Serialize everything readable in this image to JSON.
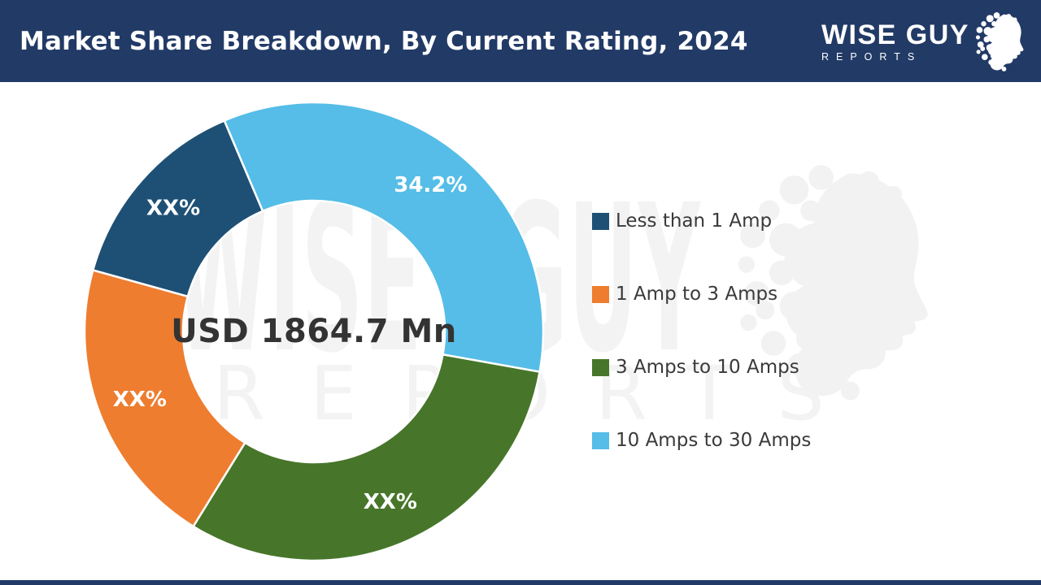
{
  "header": {
    "title": "Market Share Breakdown, By Current Rating, 2024",
    "background_color": "#223A66",
    "logo": {
      "wordmark": "WISE GUY",
      "subtext": "REPORTS"
    }
  },
  "watermark": {
    "wordmark": "WISE GUY",
    "subtext": "REPORTS"
  },
  "chart_data": {
    "type": "pie",
    "subtype": "donut",
    "title": "Market Share Breakdown, By Current Rating, 2024",
    "center_label": "USD 1864.7 Mn",
    "start_angle_deg": 337,
    "direction": "counterclockwise",
    "outer_radius_px": 282,
    "inner_radius_px": 161,
    "label_radius_px": 230,
    "legend_position": "right",
    "series": [
      {
        "name": "Less than 1 Amp",
        "display_label": "XX%",
        "value_pct": 14.3,
        "color": "#1E5075"
      },
      {
        "name": "1 Amp to 3 Amps",
        "display_label": "XX%",
        "value_pct": 20.5,
        "color": "#EE7D2F"
      },
      {
        "name": "3 Amps to 10 Amps",
        "display_label": "XX%",
        "value_pct": 31.0,
        "color": "#47762A"
      },
      {
        "name": "10 Amps to 30 Amps",
        "display_label": "34.2%",
        "value_pct": 34.2,
        "color": "#55BDE7"
      }
    ]
  },
  "footer": {
    "color": "#223A66"
  }
}
